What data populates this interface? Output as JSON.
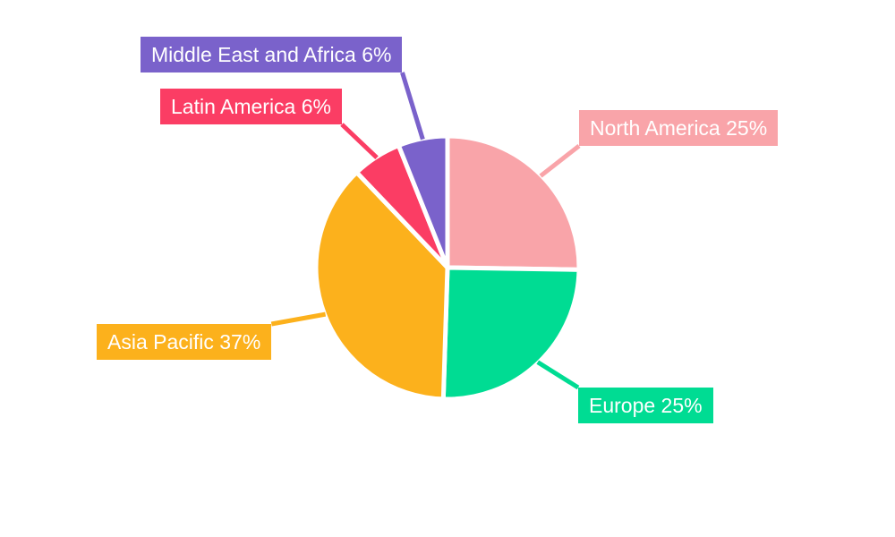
{
  "canvas": {
    "background": "#FFFFFF"
  },
  "chart_data": {
    "type": "pie",
    "title": "",
    "start_angle_deg": 0,
    "direction": "clockwise",
    "label_style": {
      "text_color": "#FFFFFF"
    },
    "slices": [
      {
        "label": "North America",
        "value": 25,
        "display": "North America 25%",
        "color": "#F9A4A9"
      },
      {
        "label": "Europe",
        "value": 25,
        "display": "Europe 25%",
        "color": "#00DC93"
      },
      {
        "label": "Asia Pacific",
        "value": 37,
        "display": "Asia Pacific 37%",
        "color": "#FCB11C"
      },
      {
        "label": "Latin America",
        "value": 6,
        "display": "Latin America 6%",
        "color": "#FB3D64"
      },
      {
        "label": "Middle East and Africa",
        "value": 6,
        "display": "Middle East and Africa 6%",
        "color": "#7A62CB"
      }
    ]
  }
}
